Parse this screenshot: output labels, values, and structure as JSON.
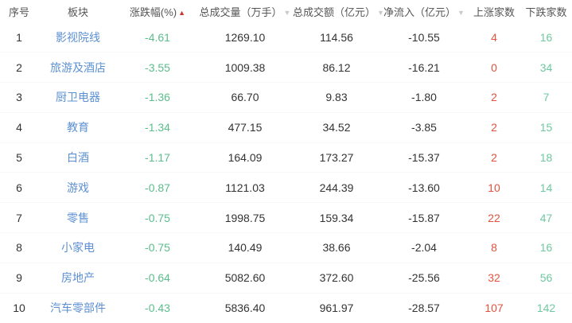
{
  "table": {
    "columns": [
      {
        "label": "序号",
        "sortable": false,
        "sort_icon": "none"
      },
      {
        "label": "板块",
        "sortable": false,
        "sort_icon": "none"
      },
      {
        "label": "涨跌幅(%)",
        "sortable": true,
        "sort_icon": "sort-up-active-red"
      },
      {
        "label": "总成交量（万手）",
        "sortable": true,
        "sort_icon": "sort-down-inactive-gray"
      },
      {
        "label": "总成交额（亿元）",
        "sortable": true,
        "sort_icon": "sort-down-inactive-gray"
      },
      {
        "label": "净流入（亿元）",
        "sortable": true,
        "sort_icon": "sort-down-inactive-gray"
      },
      {
        "label": "上涨家数",
        "sortable": false,
        "sort_icon": "none"
      },
      {
        "label": "下跌家数",
        "sortable": false,
        "sort_icon": "none"
      }
    ],
    "rows": [
      {
        "rank": "1",
        "sector": "影视院线",
        "change": "-4.61",
        "volume": "1269.10",
        "turnover": "114.56",
        "net_inflow": "-10.55",
        "rising": "4",
        "falling": "16"
      },
      {
        "rank": "2",
        "sector": "旅游及酒店",
        "change": "-3.55",
        "volume": "1009.38",
        "turnover": "86.12",
        "net_inflow": "-16.21",
        "rising": "0",
        "falling": "34"
      },
      {
        "rank": "3",
        "sector": "厨卫电器",
        "change": "-1.36",
        "volume": "66.70",
        "turnover": "9.83",
        "net_inflow": "-1.80",
        "rising": "2",
        "falling": "7"
      },
      {
        "rank": "4",
        "sector": "教育",
        "change": "-1.34",
        "volume": "477.15",
        "turnover": "34.52",
        "net_inflow": "-3.85",
        "rising": "2",
        "falling": "15"
      },
      {
        "rank": "5",
        "sector": "白酒",
        "change": "-1.17",
        "volume": "164.09",
        "turnover": "173.27",
        "net_inflow": "-15.37",
        "rising": "2",
        "falling": "18"
      },
      {
        "rank": "6",
        "sector": "游戏",
        "change": "-0.87",
        "volume": "1121.03",
        "turnover": "244.39",
        "net_inflow": "-13.60",
        "rising": "10",
        "falling": "14"
      },
      {
        "rank": "7",
        "sector": "零售",
        "change": "-0.75",
        "volume": "1998.75",
        "turnover": "159.34",
        "net_inflow": "-15.87",
        "rising": "22",
        "falling": "47"
      },
      {
        "rank": "8",
        "sector": "小家电",
        "change": "-0.75",
        "volume": "140.49",
        "turnover": "38.66",
        "net_inflow": "-2.04",
        "rising": "8",
        "falling": "16"
      },
      {
        "rank": "9",
        "sector": "房地产",
        "change": "-0.64",
        "volume": "5082.60",
        "turnover": "372.60",
        "net_inflow": "-25.56",
        "rising": "32",
        "falling": "56"
      },
      {
        "rank": "10",
        "sector": "汽车零部件",
        "change": "-0.43",
        "volume": "5836.40",
        "turnover": "961.97",
        "net_inflow": "-28.57",
        "rising": "107",
        "falling": "142"
      }
    ]
  },
  "icons": {
    "sort_active": "sort-up-icon",
    "sort_inactive": "sort-down-icon"
  },
  "colors": {
    "link_blue": "#5c90d2",
    "change_green": "#5bbd8b",
    "falling_green": "#6fc9a0",
    "rising_red": "#e0543f",
    "sort_active_red": "#cf352e",
    "sort_inactive_gray": "#c9c9c9",
    "header_text": "#555555",
    "body_text": "#333333",
    "background": "#ffffff"
  }
}
